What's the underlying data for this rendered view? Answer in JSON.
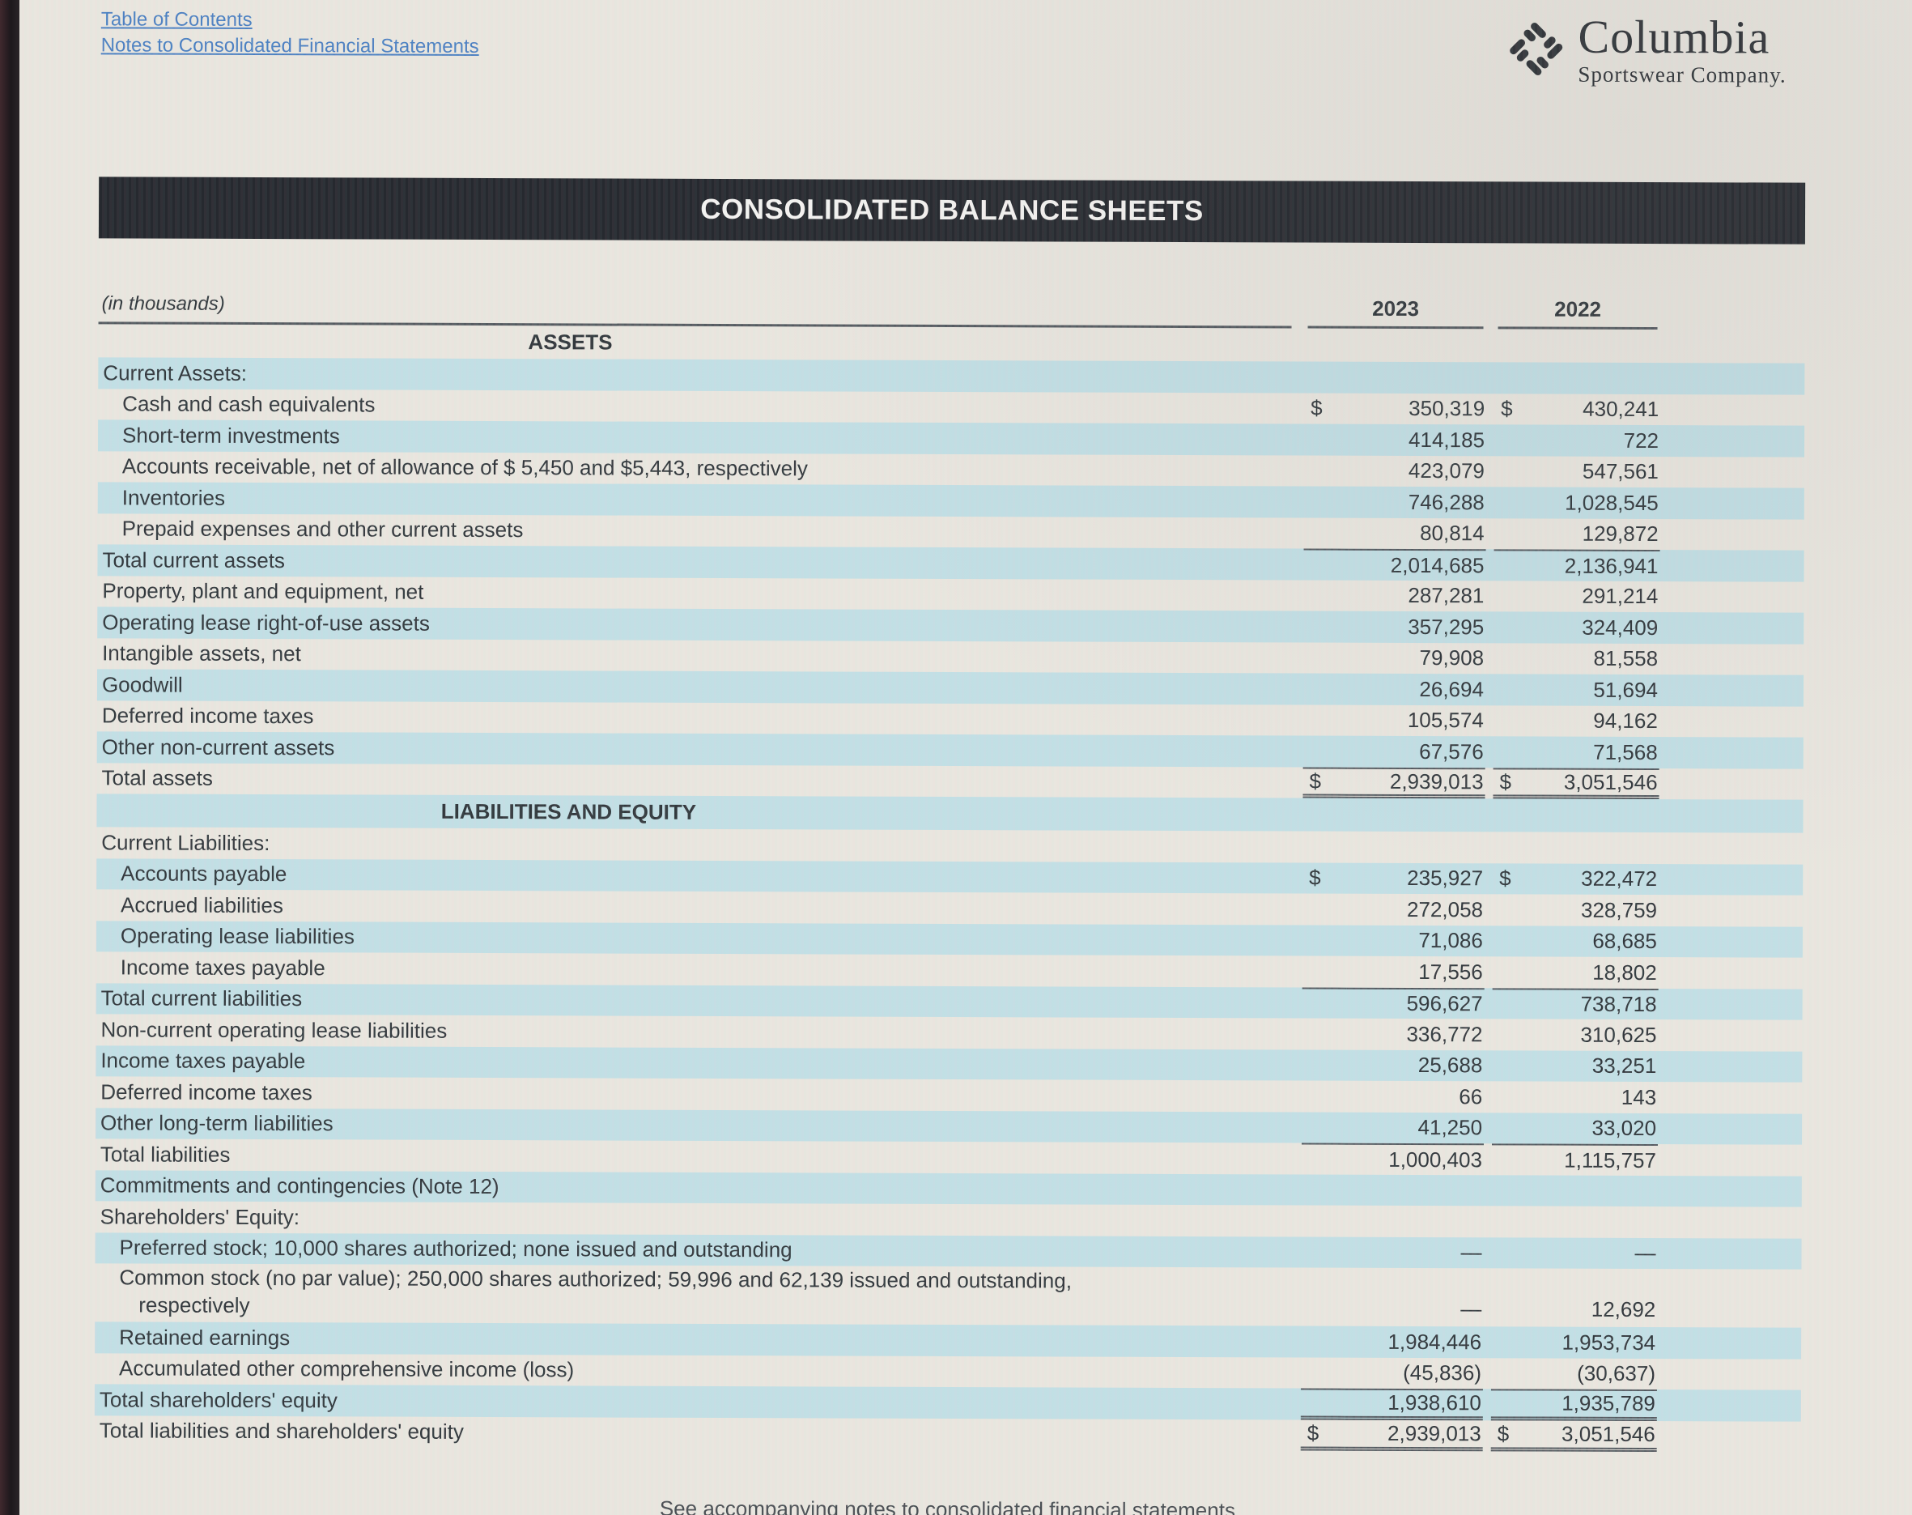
{
  "nav": {
    "link_toc": "Table of Contents",
    "link_notes": "Notes to Consolidated Financial Statements"
  },
  "logo": {
    "brand": "Columbia",
    "tagline": "Sportswear Company."
  },
  "banner_title": "CONSOLIDATED BALANCE SHEETS",
  "table": {
    "units_label": "(in thousands)",
    "years": [
      "2023",
      "2022"
    ],
    "rows": [
      {
        "type": "header",
        "label": "ASSETS",
        "shade": false
      },
      {
        "label": "Current Assets:",
        "shade": true
      },
      {
        "label": "Cash and cash equivalents",
        "shade": false,
        "indent": 1,
        "d1": "$",
        "v1": "350,319",
        "d2": "$",
        "v2": "430,241"
      },
      {
        "label": "Short-term investments",
        "shade": true,
        "indent": 1,
        "v1": "414,185",
        "v2": "722"
      },
      {
        "label": "Accounts receivable, net of allowance of $ 5,450 and $5,443, respectively",
        "shade": false,
        "indent": 1,
        "v1": "423,079",
        "v2": "547,561"
      },
      {
        "label": "Inventories",
        "shade": true,
        "indent": 1,
        "v1": "746,288",
        "v2": "1,028,545"
      },
      {
        "label": "Prepaid expenses and other current assets",
        "shade": false,
        "indent": 1,
        "v1": "80,814",
        "v2": "129,872"
      },
      {
        "label": "Total current assets",
        "shade": true,
        "ra": true,
        "v1": "2,014,685",
        "v2": "2,136,941"
      },
      {
        "label": "Property, plant and equipment, net",
        "shade": false,
        "v1": "287,281",
        "v2": "291,214"
      },
      {
        "label": "Operating lease right-of-use assets",
        "shade": true,
        "v1": "357,295",
        "v2": "324,409"
      },
      {
        "label": "Intangible assets, net",
        "shade": false,
        "v1": "79,908",
        "v2": "81,558"
      },
      {
        "label": "Goodwill",
        "shade": true,
        "v1": "26,694",
        "v2": "51,694"
      },
      {
        "label": "Deferred income taxes",
        "shade": false,
        "v1": "105,574",
        "v2": "94,162"
      },
      {
        "label": "Other non-current assets",
        "shade": true,
        "v1": "67,576",
        "v2": "71,568"
      },
      {
        "label": "Total assets",
        "shade": false,
        "ra": true,
        "db": true,
        "d1": "$",
        "v1": "2,939,013",
        "d2": "$",
        "v2": "3,051,546"
      },
      {
        "type": "header",
        "label": "LIABILITIES AND EQUITY",
        "shade": true
      },
      {
        "label": "Current Liabilities:",
        "shade": false
      },
      {
        "label": "Accounts payable",
        "shade": true,
        "indent": 1,
        "d1": "$",
        "v1": "235,927",
        "d2": "$",
        "v2": "322,472"
      },
      {
        "label": "Accrued liabilities",
        "shade": false,
        "indent": 1,
        "v1": "272,058",
        "v2": "328,759"
      },
      {
        "label": "Operating lease liabilities",
        "shade": true,
        "indent": 1,
        "v1": "71,086",
        "v2": "68,685"
      },
      {
        "label": "Income taxes payable",
        "shade": false,
        "indent": 1,
        "v1": "17,556",
        "v2": "18,802"
      },
      {
        "label": "Total current liabilities",
        "shade": true,
        "ra": true,
        "v1": "596,627",
        "v2": "738,718"
      },
      {
        "label": "Non-current operating lease liabilities",
        "shade": false,
        "v1": "336,772",
        "v2": "310,625"
      },
      {
        "label": "Income taxes payable",
        "shade": true,
        "v1": "25,688",
        "v2": "33,251"
      },
      {
        "label": "Deferred income taxes",
        "shade": false,
        "v1": "66",
        "v2": "143"
      },
      {
        "label": "Other long-term liabilities",
        "shade": true,
        "v1": "41,250",
        "v2": "33,020"
      },
      {
        "label": "Total liabilities",
        "shade": false,
        "ra": true,
        "v1": "1,000,403",
        "v2": "1,115,757"
      },
      {
        "label": "Commitments and contingencies (Note 12)",
        "shade": true
      },
      {
        "label": "Shareholders' Equity:",
        "shade": false
      },
      {
        "label": "Preferred stock; 10,000 shares authorized; none issued and outstanding",
        "shade": true,
        "indent": 1,
        "v1": "—",
        "v2": "—"
      },
      {
        "label": "Common stock (no par value);  250,000 shares authorized; 59,996 and 62,139 issued and outstanding,",
        "label2": "respectively",
        "shade": false,
        "indent": 1,
        "v1": "—",
        "v2": "12,692"
      },
      {
        "label": "Retained earnings",
        "shade": true,
        "indent": 1,
        "v1": "1,984,446",
        "v2": "1,953,734"
      },
      {
        "label": "Accumulated other comprehensive income (loss)",
        "shade": false,
        "indent": 1,
        "v1": "(45,836)",
        "v2": "(30,637)"
      },
      {
        "label": "Total shareholders' equity",
        "shade": true,
        "ra": true,
        "db": true,
        "v1": "1,938,610",
        "v2": "1,935,789"
      },
      {
        "label": "Total liabilities and shareholders' equity",
        "shade": false,
        "db": true,
        "d1": "$",
        "v1": "2,939,013",
        "d2": "$",
        "v2": "3,051,546"
      }
    ]
  },
  "footer_note": "See accompanying notes to consolidated financial statements",
  "colors": {
    "stripe": "#c2dfe5",
    "banner": "#26292f",
    "link": "#4b80c2",
    "ink": "#32383d",
    "rule": "#555b61",
    "page": "#e9e6df"
  }
}
